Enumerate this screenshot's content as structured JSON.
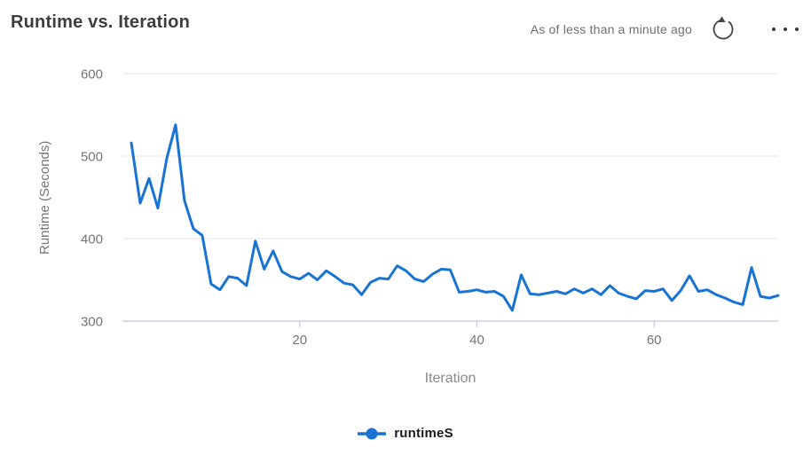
{
  "header": {
    "title": "Runtime vs. Iteration",
    "as_of_text": "As of less than a minute ago"
  },
  "colors": {
    "line": "#1873d3",
    "axis": "#c7d1e8",
    "gridline": "#ebebeb",
    "tick_label": "#757575",
    "axis_title": "#8a8a8a",
    "icon": "#444444"
  },
  "chart_data": {
    "type": "line",
    "title": "Runtime vs. Iteration",
    "xlabel": "Iteration",
    "ylabel": "Runtime (Seconds)",
    "x_ticks": [
      20,
      40,
      60
    ],
    "y_ticks": [
      300,
      400,
      500,
      600
    ],
    "xlim": [
      0,
      74
    ],
    "ylim": [
      300,
      600
    ],
    "grid": "horizontal",
    "legend": {
      "position": "bottom",
      "entries": [
        "runtimeS"
      ]
    },
    "series": [
      {
        "name": "runtimeS",
        "color": "#1873d3",
        "x": [
          1,
          2,
          3,
          4,
          5,
          6,
          7,
          8,
          9,
          10,
          11,
          12,
          13,
          14,
          15,
          16,
          17,
          18,
          19,
          20,
          21,
          22,
          23,
          24,
          25,
          26,
          27,
          28,
          29,
          30,
          31,
          32,
          33,
          34,
          35,
          36,
          37,
          38,
          39,
          40,
          41,
          42,
          43,
          44,
          45,
          46,
          47,
          48,
          49,
          50,
          51,
          52,
          53,
          54,
          55,
          56,
          57,
          58,
          59,
          60,
          61,
          62,
          63,
          64,
          65,
          66,
          67,
          68,
          69,
          70,
          71,
          72,
          73,
          74
        ],
        "y": [
          516,
          443,
          473,
          437,
          497,
          538,
          446,
          412,
          404,
          345,
          338,
          354,
          352,
          343,
          397,
          363,
          385,
          360,
          354,
          351,
          358,
          350,
          361,
          354,
          346,
          344,
          332,
          347,
          352,
          351,
          367,
          361,
          351,
          348,
          357,
          363,
          362,
          335,
          336,
          338,
          335,
          336,
          330,
          313,
          356,
          333,
          332,
          334,
          336,
          333,
          339,
          334,
          339,
          332,
          343,
          334,
          330,
          327,
          337,
          336,
          339,
          325,
          337,
          355,
          336,
          338,
          332,
          328,
          323,
          320,
          365,
          330,
          328,
          331
        ]
      }
    ]
  }
}
